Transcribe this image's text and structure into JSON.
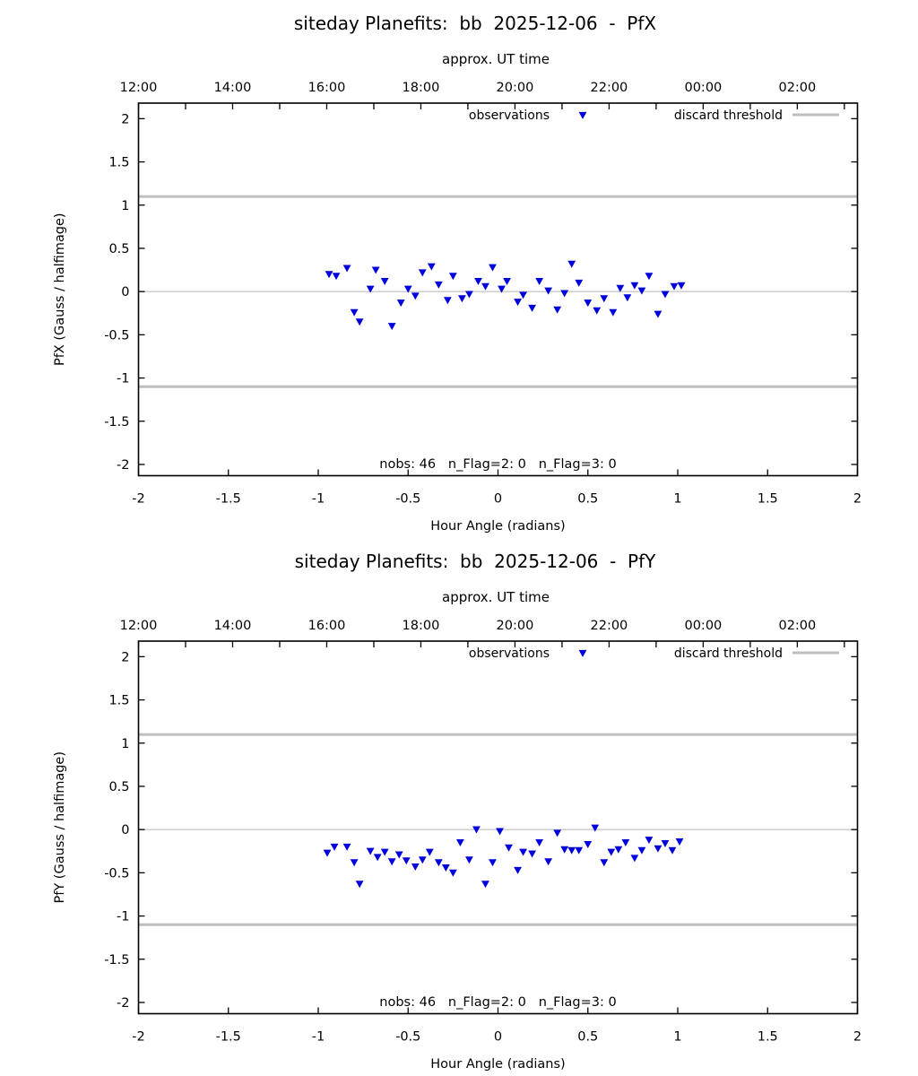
{
  "colors": {
    "marker_blue": "#0000dd",
    "threshold_gray": "#bfbfbf",
    "zero_line_gray": "#c8c8c8",
    "axis_black": "#000000",
    "background": "#ffffff"
  },
  "chart_data": [
    {
      "type": "scatter",
      "title": "siteday Planefits:  bb  2025-12-06  -  PfX",
      "x2label": "approx. UT time",
      "xlabel": "Hour Angle (radians)",
      "ylabel": "PfX (Gauss / halfimage)",
      "annotation": "nobs: 46   n_Flag=2: 0   n_Flag=3: 0",
      "series_label": "observations",
      "threshold_label": "discard threshold",
      "marker": "filled-triangle-down",
      "marker_color": "#0000dd",
      "threshold_color": "#bfbfbf",
      "zero_line_color": "#c8c8c8",
      "threshold_values": [
        1.1,
        -1.1
      ],
      "zero_line": 0,
      "grid": false,
      "legend_position": "top-right-inside",
      "xlim": [
        -2,
        2
      ],
      "ylim": [
        -2.13,
        2.18
      ],
      "xticks": [
        -2,
        -1.5,
        -1,
        -0.5,
        0,
        0.5,
        1,
        1.5,
        2
      ],
      "yticks": [
        -2,
        -1.5,
        -1,
        -0.5,
        0,
        0.5,
        1,
        1.5,
        2
      ],
      "x2_minor_step": 0.261799,
      "x2_ticks": [
        {
          "label": "12:00",
          "x": -2.0
        },
        {
          "label": "14:00",
          "x": -1.4764
        },
        {
          "label": "16:00",
          "x": -0.9528
        },
        {
          "label": "18:00",
          "x": -0.4292
        },
        {
          "label": "20:00",
          "x": 0.0944
        },
        {
          "label": "22:00",
          "x": 0.618
        },
        {
          "label": "00:00",
          "x": 1.1416
        },
        {
          "label": "02:00",
          "x": 1.6652
        }
      ],
      "points": [
        [
          -0.94,
          0.2
        ],
        [
          -0.9,
          0.18
        ],
        [
          -0.84,
          0.27
        ],
        [
          -0.8,
          -0.24
        ],
        [
          -0.77,
          -0.35
        ],
        [
          -0.71,
          0.03
        ],
        [
          -0.68,
          0.25
        ],
        [
          -0.63,
          0.12
        ],
        [
          -0.59,
          -0.4
        ],
        [
          -0.54,
          -0.13
        ],
        [
          -0.5,
          0.03
        ],
        [
          -0.46,
          -0.05
        ],
        [
          -0.42,
          0.22
        ],
        [
          -0.37,
          0.29
        ],
        [
          -0.33,
          0.08
        ],
        [
          -0.28,
          -0.1
        ],
        [
          -0.25,
          0.18
        ],
        [
          -0.2,
          -0.08
        ],
        [
          -0.16,
          -0.03
        ],
        [
          -0.11,
          0.12
        ],
        [
          -0.07,
          0.06
        ],
        [
          -0.03,
          0.28
        ],
        [
          0.02,
          0.03
        ],
        [
          0.05,
          0.12
        ],
        [
          0.11,
          -0.12
        ],
        [
          0.14,
          -0.04
        ],
        [
          0.19,
          -0.19
        ],
        [
          0.23,
          0.12
        ],
        [
          0.28,
          0.01
        ],
        [
          0.33,
          -0.21
        ],
        [
          0.37,
          -0.02
        ],
        [
          0.41,
          0.32
        ],
        [
          0.45,
          0.1
        ],
        [
          0.5,
          -0.13
        ],
        [
          0.55,
          -0.22
        ],
        [
          0.59,
          -0.08
        ],
        [
          0.64,
          -0.24
        ],
        [
          0.68,
          0.04
        ],
        [
          0.72,
          -0.07
        ],
        [
          0.76,
          0.07
        ],
        [
          0.8,
          0.01
        ],
        [
          0.84,
          0.18
        ],
        [
          0.89,
          -0.26
        ],
        [
          0.93,
          -0.03
        ],
        [
          0.98,
          0.06
        ],
        [
          1.02,
          0.07
        ]
      ]
    },
    {
      "type": "scatter",
      "title": "siteday Planefits:  bb  2025-12-06  -  PfY",
      "x2label": "approx. UT time",
      "xlabel": "Hour Angle (radians)",
      "ylabel": "PfY (Gauss / halfimage)",
      "annotation": "nobs: 46   n_Flag=2: 0   n_Flag=3: 0",
      "series_label": "observations",
      "threshold_label": "discard threshold",
      "marker": "filled-triangle-down",
      "marker_color": "#0000dd",
      "threshold_color": "#bfbfbf",
      "zero_line_color": "#c8c8c8",
      "threshold_values": [
        1.1,
        -1.1
      ],
      "zero_line": 0,
      "grid": false,
      "legend_position": "top-right-inside",
      "xlim": [
        -2,
        2
      ],
      "ylim": [
        -2.13,
        2.18
      ],
      "xticks": [
        -2,
        -1.5,
        -1,
        -0.5,
        0,
        0.5,
        1,
        1.5,
        2
      ],
      "yticks": [
        -2,
        -1.5,
        -1,
        -0.5,
        0,
        0.5,
        1,
        1.5,
        2
      ],
      "x2_minor_step": 0.261799,
      "x2_ticks": [
        {
          "label": "12:00",
          "x": -2.0
        },
        {
          "label": "14:00",
          "x": -1.4764
        },
        {
          "label": "16:00",
          "x": -0.9528
        },
        {
          "label": "18:00",
          "x": -0.4292
        },
        {
          "label": "20:00",
          "x": 0.0944
        },
        {
          "label": "22:00",
          "x": 0.618
        },
        {
          "label": "00:00",
          "x": 1.1416
        },
        {
          "label": "02:00",
          "x": 1.6652
        }
      ],
      "points": [
        [
          -0.95,
          -0.27
        ],
        [
          -0.91,
          -0.2
        ],
        [
          -0.84,
          -0.2
        ],
        [
          -0.8,
          -0.38
        ],
        [
          -0.77,
          -0.63
        ],
        [
          -0.71,
          -0.25
        ],
        [
          -0.67,
          -0.32
        ],
        [
          -0.63,
          -0.26
        ],
        [
          -0.59,
          -0.37
        ],
        [
          -0.55,
          -0.29
        ],
        [
          -0.51,
          -0.36
        ],
        [
          -0.46,
          -0.43
        ],
        [
          -0.42,
          -0.35
        ],
        [
          -0.38,
          -0.26
        ],
        [
          -0.33,
          -0.38
        ],
        [
          -0.29,
          -0.44
        ],
        [
          -0.25,
          -0.5
        ],
        [
          -0.21,
          -0.15
        ],
        [
          -0.16,
          -0.35
        ],
        [
          -0.12,
          0.0
        ],
        [
          -0.07,
          -0.63
        ],
        [
          -0.03,
          -0.38
        ],
        [
          0.01,
          -0.02
        ],
        [
          0.06,
          -0.21
        ],
        [
          0.11,
          -0.47
        ],
        [
          0.14,
          -0.26
        ],
        [
          0.19,
          -0.28
        ],
        [
          0.23,
          -0.15
        ],
        [
          0.28,
          -0.37
        ],
        [
          0.33,
          -0.04
        ],
        [
          0.37,
          -0.23
        ],
        [
          0.41,
          -0.24
        ],
        [
          0.45,
          -0.24
        ],
        [
          0.5,
          -0.17
        ],
        [
          0.54,
          0.02
        ],
        [
          0.59,
          -0.38
        ],
        [
          0.63,
          -0.26
        ],
        [
          0.67,
          -0.23
        ],
        [
          0.71,
          -0.15
        ],
        [
          0.76,
          -0.33
        ],
        [
          0.8,
          -0.24
        ],
        [
          0.84,
          -0.12
        ],
        [
          0.89,
          -0.22
        ],
        [
          0.93,
          -0.16
        ],
        [
          0.97,
          -0.24
        ],
        [
          1.01,
          -0.14
        ]
      ]
    }
  ]
}
